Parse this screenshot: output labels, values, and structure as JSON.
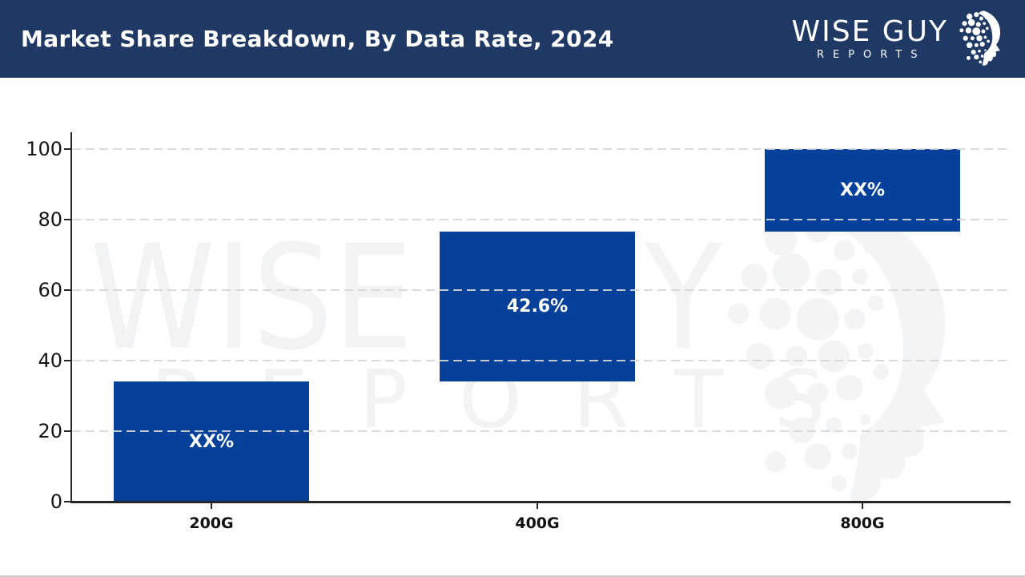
{
  "header": {
    "title": "Market Share Breakdown, By Data Rate, 2024",
    "bg_color": "#1f3864",
    "logo": {
      "line1": "WISE GUY",
      "line2": "REPORTS"
    }
  },
  "watermark": {
    "line1": "WISE GUY",
    "line2": "REPORTS"
  },
  "chart_data": {
    "type": "bar",
    "subtype": "floating-waterfall-bars",
    "title": "Market Share Breakdown, By Data Rate, 2024",
    "categories": [
      "200G",
      "400G",
      "800G"
    ],
    "segments": [
      {
        "category": "200G",
        "start": 0,
        "end": 34,
        "label": "XX%"
      },
      {
        "category": "400G",
        "start": 34,
        "end": 76.6,
        "value": 42.6,
        "label": "42.6%"
      },
      {
        "category": "800G",
        "start": 76.6,
        "end": 100,
        "label": "XX%"
      }
    ],
    "xlabel": "",
    "ylabel": "",
    "ylim": [
      0,
      100
    ],
    "yticks": [
      0,
      20,
      40,
      60,
      80,
      100
    ],
    "grid": "horizontal-dashed",
    "legend": "none",
    "bar_color": "#05419b",
    "label_color": "#ffffff",
    "axis_color": "#262626"
  }
}
